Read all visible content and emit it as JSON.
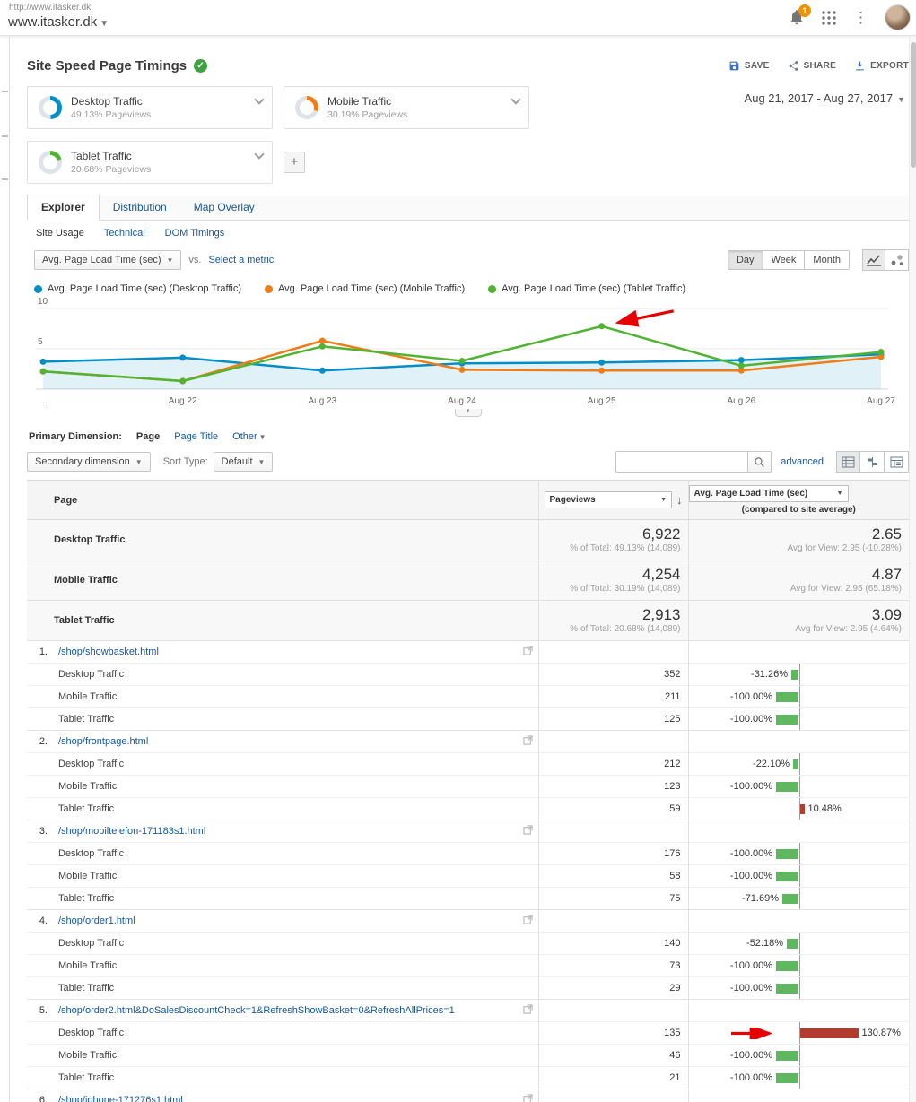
{
  "topbar": {
    "url": "http://www.itasker.dk",
    "account_name": "www.itasker.dk",
    "notification_badge": "1"
  },
  "header": {
    "title": "Site Speed Page Timings",
    "save": "SAVE",
    "share": "SHARE",
    "export": "EXPORT",
    "date_range": "Aug 21, 2017 - Aug 27, 2017"
  },
  "segments": [
    {
      "name": "Desktop Traffic",
      "subtitle": "49.13% Pageviews",
      "pct": 49.13,
      "color": "#058dc7"
    },
    {
      "name": "Mobile Traffic",
      "subtitle": "30.19% Pageviews",
      "pct": 30.19,
      "color": "#ed7e17"
    },
    {
      "name": "Tablet Traffic",
      "subtitle": "20.68% Pageviews",
      "pct": 20.68,
      "color": "#50b432"
    }
  ],
  "tabs": [
    {
      "label": "Explorer"
    },
    {
      "label": "Distribution"
    },
    {
      "label": "Map Overlay"
    }
  ],
  "subtabs": [
    {
      "label": "Site Usage"
    },
    {
      "label": "Technical"
    },
    {
      "label": "DOM Timings"
    }
  ],
  "metric_bar": {
    "metric": "Avg. Page Load Time (sec)",
    "vs": "vs.",
    "select_metric": "Select a metric",
    "granularity": [
      "Day",
      "Week",
      "Month"
    ],
    "active_granularity": "Day"
  },
  "chart_data": {
    "type": "line",
    "x": [
      "...",
      "Aug 22",
      "Aug 23",
      "Aug 24",
      "Aug 25",
      "Aug 26",
      "Aug 27"
    ],
    "ylim": [
      0,
      10
    ],
    "yticks": [
      5,
      10
    ],
    "legend_position": "top",
    "series": [
      {
        "name": "Avg. Page Load Time (sec) (Desktop Traffic)",
        "color": "#058dc7",
        "area": true,
        "values": [
          3.4,
          3.9,
          2.3,
          3.2,
          3.3,
          3.6,
          4.3
        ]
      },
      {
        "name": "Avg. Page Load Time (sec) (Mobile Traffic)",
        "color": "#ed7e17",
        "values": [
          2.2,
          1.0,
          6.0,
          2.4,
          2.3,
          2.3,
          4.0
        ]
      },
      {
        "name": "Avg. Page Load Time (sec) (Tablet Traffic)",
        "color": "#50b432",
        "values": [
          2.2,
          1.0,
          5.3,
          3.5,
          7.8,
          2.9,
          4.6
        ]
      }
    ],
    "annotation": "red arrow pointing at Tablet Traffic peak on Aug 25"
  },
  "primary_dimension": {
    "label": "Primary Dimension:",
    "selected": "Page",
    "option_page_title": "Page Title",
    "option_other": "Other"
  },
  "toolbar": {
    "secondary_dimension": "Secondary dimension",
    "sort_type_label": "Sort Type:",
    "sort_type_value": "Default",
    "advanced": "advanced"
  },
  "table": {
    "headers": {
      "page": "Page",
      "pageviews": "Pageviews",
      "metric": "Avg. Page Load Time (sec)",
      "metric_note": "(compared to site average)"
    },
    "totals": [
      {
        "name": "Desktop Traffic",
        "pageviews": "6,922",
        "pv_note": "% of Total: 49.13% (14,089)",
        "value": "2.65",
        "value_note": "Avg for View: 2.95 (-10.28%)"
      },
      {
        "name": "Mobile Traffic",
        "pageviews": "4,254",
        "pv_note": "% of Total: 30.19% (14,089)",
        "value": "4.87",
        "value_note": "Avg for View: 2.95 (65.18%)"
      },
      {
        "name": "Tablet Traffic",
        "pageviews": "2,913",
        "pv_note": "% of Total: 20.68% (14,089)",
        "value": "3.09",
        "value_note": "Avg for View: 2.95 (4.64%)"
      }
    ],
    "rows": [
      {
        "num": "1.",
        "page": "/shop/showbasket.html",
        "segments": [
          {
            "name": "Desktop Traffic",
            "pageviews": "352",
            "delta": -31.26,
            "label": "-31.26%"
          },
          {
            "name": "Mobile Traffic",
            "pageviews": "211",
            "delta": -100.0,
            "label": "-100.00%"
          },
          {
            "name": "Tablet Traffic",
            "pageviews": "125",
            "delta": -100.0,
            "label": "-100.00%"
          }
        ]
      },
      {
        "num": "2.",
        "page": "/shop/frontpage.html",
        "segments": [
          {
            "name": "Desktop Traffic",
            "pageviews": "212",
            "delta": -22.1,
            "label": "-22.10%"
          },
          {
            "name": "Mobile Traffic",
            "pageviews": "123",
            "delta": -100.0,
            "label": "-100.00%"
          },
          {
            "name": "Tablet Traffic",
            "pageviews": "59",
            "delta": 10.48,
            "label": "10.48%"
          }
        ]
      },
      {
        "num": "3.",
        "page": "/shop/mobiltelefon-171183s1.html",
        "segments": [
          {
            "name": "Desktop Traffic",
            "pageviews": "176",
            "delta": -100.0,
            "label": "-100.00%"
          },
          {
            "name": "Mobile Traffic",
            "pageviews": "58",
            "delta": -100.0,
            "label": "-100.00%"
          },
          {
            "name": "Tablet Traffic",
            "pageviews": "75",
            "delta": -71.69,
            "label": "-71.69%"
          }
        ]
      },
      {
        "num": "4.",
        "page": "/shop/order1.html",
        "segments": [
          {
            "name": "Desktop Traffic",
            "pageviews": "140",
            "delta": -52.18,
            "label": "-52.18%"
          },
          {
            "name": "Mobile Traffic",
            "pageviews": "73",
            "delta": -100.0,
            "label": "-100.00%"
          },
          {
            "name": "Tablet Traffic",
            "pageviews": "29",
            "delta": -100.0,
            "label": "-100.00%"
          }
        ]
      },
      {
        "num": "5.",
        "page": "/shop/order2.html&DoSalesDiscountCheck=1&RefreshShowBasket=0&RefreshAllPrices=1",
        "segments": [
          {
            "name": "Desktop Traffic",
            "pageviews": "135",
            "delta": 130.87,
            "label": "130.87%",
            "arrow": true
          },
          {
            "name": "Mobile Traffic",
            "pageviews": "46",
            "delta": -100.0,
            "label": "-100.00%"
          },
          {
            "name": "Tablet Traffic",
            "pageviews": "21",
            "delta": -100.0,
            "label": "-100.00%"
          }
        ]
      },
      {
        "num": "6.",
        "page": "/shop/iphone-171276s1.html",
        "segments": []
      }
    ]
  },
  "colors": {
    "link": "#15579b",
    "bar_negative": "#5fb760",
    "bar_positive": "#b23c2e",
    "annotation": "#e60000"
  }
}
